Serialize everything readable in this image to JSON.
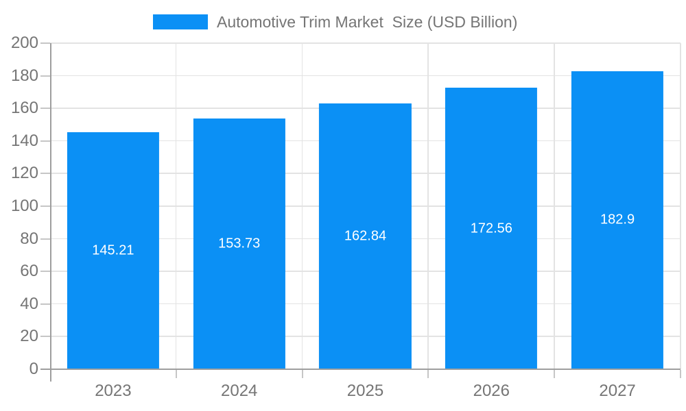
{
  "legend": {
    "series_label": "Automotive Trim Market  Size (USD Billion)"
  },
  "chart_data": {
    "type": "bar",
    "title": "Automotive Trim Market  Size (USD Billion)",
    "categories": [
      "2023",
      "2024",
      "2025",
      "2026",
      "2027"
    ],
    "series": [
      {
        "name": "Automotive Trim Market  Size (USD Billion)",
        "values": [
          145.21,
          153.73,
          162.84,
          172.56,
          182.9
        ],
        "value_labels": [
          "145.21",
          "153.73",
          "162.84",
          "172.56",
          "182.9"
        ]
      }
    ],
    "xlabel": "",
    "ylabel": "",
    "ylim": [
      0,
      200
    ],
    "yticks": [
      0,
      20,
      40,
      60,
      80,
      100,
      120,
      140,
      160,
      180,
      200
    ],
    "grid": true,
    "legend_position": "top",
    "bar_label_position": "center",
    "colors": {
      "bar": "#0B90F5",
      "bar_label": "#FFFFFF",
      "axis_text": "#757575",
      "axis_line": "#9E9E9E",
      "gridline": "#E3E3E3",
      "tick": "#C6C6C6",
      "background": "#FFFFFF"
    }
  }
}
